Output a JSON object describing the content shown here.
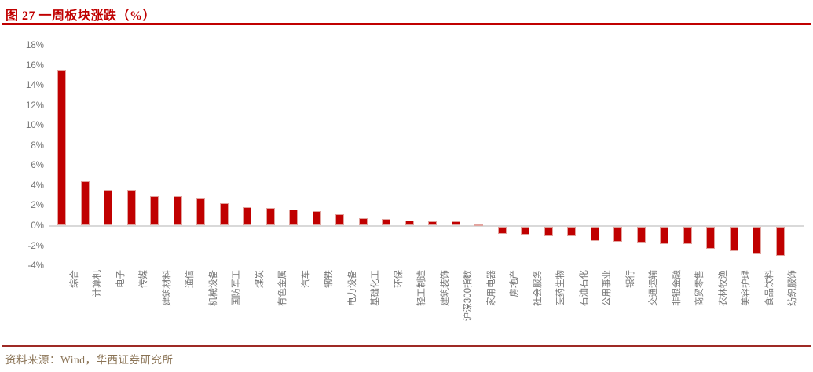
{
  "header": {
    "title": "图 27 一周板块涨跌（%）"
  },
  "footer": {
    "source": "资料来源：Wind，华西证券研究所"
  },
  "colors": {
    "title_text": "#C00000",
    "title_rule": "#C00000",
    "bar_fill": "#C00000",
    "bar_edge": "#E2A39E",
    "axis_line": "#D9D9D9",
    "tick_label": "#757575",
    "footer_rule": "#9E2A25",
    "footer_text": "#8A7355"
  },
  "chart_data": {
    "type": "bar",
    "title": "一周板块涨跌（%）",
    "xlabel": "",
    "ylabel": "",
    "ylim": [
      -4,
      18
    ],
    "ytick_step": 2,
    "ytick_suffix": "%",
    "grid": false,
    "legend": false,
    "categories": [
      "综合",
      "计算机",
      "电子",
      "传媒",
      "建筑材料",
      "通信",
      "机械设备",
      "国防军工",
      "煤炭",
      "有色金属",
      "汽车",
      "钢铁",
      "电力设备",
      "基础化工",
      "环保",
      "轻工制造",
      "建筑装饰",
      "沪深300指数",
      "家用电器",
      "房地产",
      "社会服务",
      "医药生物",
      "石油石化",
      "公用事业",
      "银行",
      "交通运输",
      "非银金融",
      "商贸零售",
      "农林牧渔",
      "美容护理",
      "食品饮料",
      "纺织服饰"
    ],
    "values": [
      15.5,
      4.4,
      3.5,
      3.5,
      2.9,
      2.9,
      2.7,
      2.2,
      1.8,
      1.7,
      1.6,
      1.4,
      1.1,
      0.7,
      0.6,
      0.5,
      0.4,
      0.4,
      0.1,
      -0.7,
      -0.8,
      -0.9,
      -0.9,
      -1.4,
      -1.5,
      -1.6,
      -1.7,
      -1.7,
      -2.2,
      -2.4,
      -2.7,
      -2.9
    ]
  }
}
